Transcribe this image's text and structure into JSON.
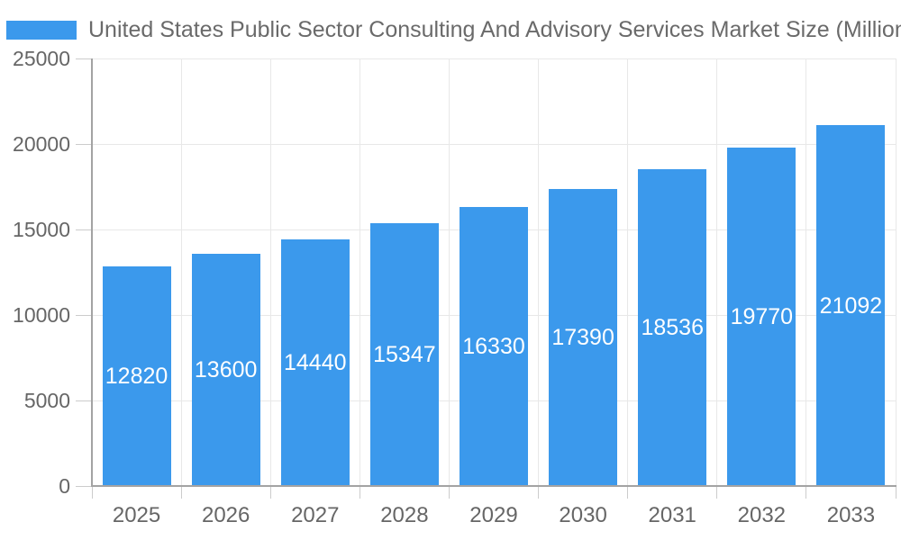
{
  "legend": {
    "swatch": "series-color-swatch"
  },
  "chart_data": {
    "type": "bar",
    "title": "United States Public Sector Consulting And Advisory Services Market Size (Million)",
    "categories": [
      "2025",
      "2026",
      "2027",
      "2028",
      "2029",
      "2030",
      "2031",
      "2032",
      "2033"
    ],
    "values": [
      12820,
      13600,
      14440,
      15347,
      16330,
      17390,
      18536,
      19770,
      21092
    ],
    "xlabel": "",
    "ylabel": "",
    "ylim": [
      0,
      25000
    ],
    "y_ticks": [
      0,
      5000,
      10000,
      15000,
      20000,
      25000
    ],
    "grid": true,
    "legend_position": "top-left",
    "value_labels": "inside-center",
    "colors": {
      "bar": "#3b99ec",
      "value_label": "#ffffff",
      "gridline": "#e8e8e8",
      "tick": "#cccccc",
      "axis_line": "#a3a3a3",
      "axis_text": "#666666",
      "title_text": "#6a6a6a",
      "background": "#ffffff"
    }
  }
}
